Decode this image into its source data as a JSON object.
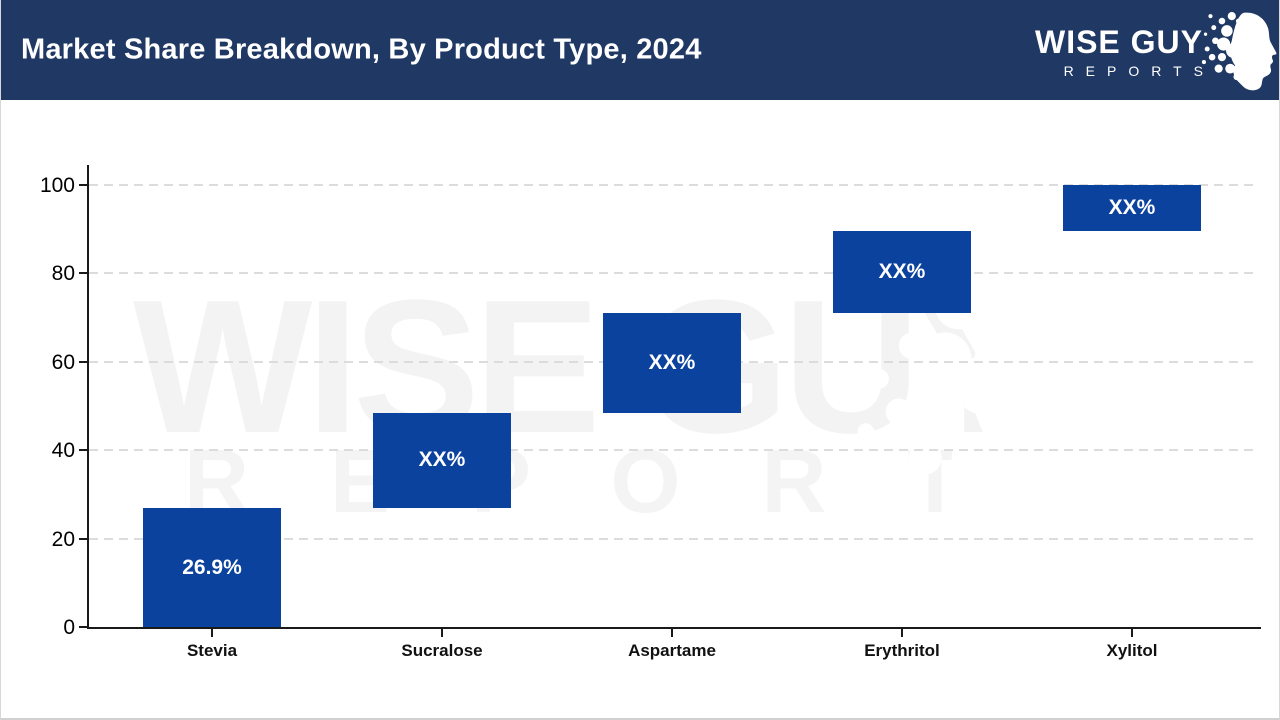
{
  "header": {
    "title": "Market Share Breakdown, By Product Type, 2024",
    "bg_color": "#1f3864",
    "logo": {
      "line1": "WISE GUY",
      "line2": "REPORTS"
    }
  },
  "watermark": {
    "line1": "WISE GUY",
    "line2": "R E P O R T S"
  },
  "chart_data": {
    "type": "bar",
    "subtype": "waterfall",
    "title": "Market Share Breakdown, By Product Type, 2024",
    "categories": [
      "Stevia",
      "Sucralose",
      "Aspartame",
      "Erythritol",
      "Xylitol"
    ],
    "segments": [
      {
        "category": "Stevia",
        "start": 0,
        "end": 26.9,
        "label": "26.9%"
      },
      {
        "category": "Sucralose",
        "start": 26.9,
        "end": 48.5,
        "label": "XX%"
      },
      {
        "category": "Aspartame",
        "start": 48.5,
        "end": 71.1,
        "label": "XX%"
      },
      {
        "category": "Erythritol",
        "start": 71.1,
        "end": 89.5,
        "label": "XX%"
      },
      {
        "category": "Xylitol",
        "start": 89.5,
        "end": 100,
        "label": "XX%"
      }
    ],
    "ylim": [
      0,
      100
    ],
    "yticks": [
      0,
      20,
      40,
      60,
      80,
      100
    ],
    "xlabel": "",
    "ylabel": "",
    "grid": "horizontal-dashed",
    "legend": "none",
    "bar_color": "#0b429e",
    "bar_label_color": "#ffffff",
    "axis_color": "#1a1a1a",
    "grid_color": "#dcdcdc"
  }
}
